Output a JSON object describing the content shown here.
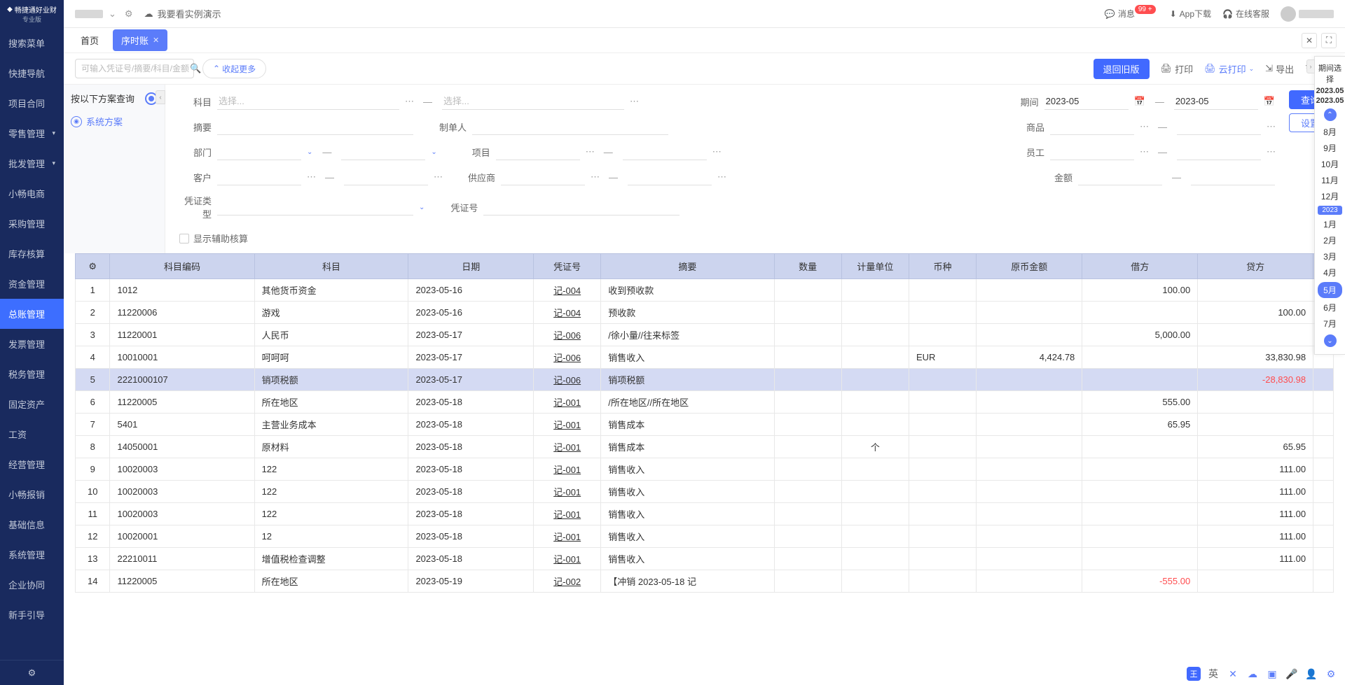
{
  "header": {
    "logo_main": "畅捷通好业财",
    "logo_sub": "专业版",
    "demo_link": "我要看实例演示",
    "msg_label": "消息",
    "msg_badge": "99 +",
    "app_download": "App下载",
    "online_service": "在线客服"
  },
  "sidebar": {
    "items": [
      {
        "label": "搜索菜单",
        "caret": false
      },
      {
        "label": "快捷导航",
        "caret": false
      },
      {
        "label": "项目合同",
        "caret": false
      },
      {
        "label": "零售管理",
        "caret": true
      },
      {
        "label": "批发管理",
        "caret": true
      },
      {
        "label": "小畅电商",
        "caret": false
      },
      {
        "label": "采购管理",
        "caret": false
      },
      {
        "label": "库存核算",
        "caret": false
      },
      {
        "label": "资金管理",
        "caret": false
      },
      {
        "label": "总账管理",
        "caret": false,
        "active": true
      },
      {
        "label": "发票管理",
        "caret": false
      },
      {
        "label": "税务管理",
        "caret": false
      },
      {
        "label": "固定资产",
        "caret": false
      },
      {
        "label": "工资",
        "caret": false
      },
      {
        "label": "经营管理",
        "caret": false
      },
      {
        "label": "小畅报销",
        "caret": false
      },
      {
        "label": "基础信息",
        "caret": false
      },
      {
        "label": "系统管理",
        "caret": false
      },
      {
        "label": "企业协同",
        "caret": false
      },
      {
        "label": "新手引导",
        "caret": false
      }
    ]
  },
  "tabs": {
    "home": "首页",
    "active": "序时账"
  },
  "toolbar": {
    "search_placeholder": "可输入凭证号/摘要/科目/金额",
    "collapse": "收起更多",
    "return_old": "退回旧版",
    "print": "打印",
    "cloud_print": "云打印",
    "export": "导出",
    "refresh": "刷新"
  },
  "filter": {
    "left_title": "按以下方案查询",
    "scheme": "系统方案",
    "labels": {
      "subject": "科目",
      "subject_ph": "选择...",
      "subject2_ph": "选择...",
      "period": "期间",
      "period_from": "2023-05",
      "period_to": "2023-05",
      "summary": "摘要",
      "maker": "制单人",
      "goods": "商品",
      "dept": "部门",
      "project": "项目",
      "employee": "员工",
      "customer": "客户",
      "supplier": "供应商",
      "amount": "金额",
      "voucher_type": "凭证类型",
      "voucher_no": "凭证号",
      "show_aux": "显示辅助核算"
    },
    "btn_query": "查询",
    "btn_setting": "设置"
  },
  "table": {
    "headers": {
      "code": "科目编码",
      "subject": "科目",
      "date": "日期",
      "voucher": "凭证号",
      "summary": "摘要",
      "qty": "数量",
      "unit": "计量单位",
      "currency": "币种",
      "orig": "原币金额",
      "debit": "借方",
      "credit": "贷方"
    },
    "rows": [
      {
        "idx": "1",
        "code": "1012",
        "subject": "其他货币资金",
        "date": "2023-05-16",
        "voucher": "记-004",
        "summary": "收到预收款",
        "qty": "",
        "unit": "",
        "currency": "",
        "orig": "",
        "debit": "100.00",
        "credit": ""
      },
      {
        "idx": "2",
        "code": "11220006",
        "subject": "游戏",
        "date": "2023-05-16",
        "voucher": "记-004",
        "summary": "预收款",
        "qty": "",
        "unit": "",
        "currency": "",
        "orig": "",
        "debit": "",
        "credit": "100.00"
      },
      {
        "idx": "3",
        "code": "11220001",
        "subject": "人民币",
        "date": "2023-05-17",
        "voucher": "记-006",
        "summary": "/徐小量//往来标签",
        "qty": "",
        "unit": "",
        "currency": "",
        "orig": "",
        "debit": "5,000.00",
        "credit": ""
      },
      {
        "idx": "4",
        "code": "10010001",
        "subject": "呵呵呵",
        "date": "2023-05-17",
        "voucher": "记-006",
        "summary": "销售收入",
        "qty": "",
        "unit": "",
        "currency": "EUR",
        "orig": "4,424.78",
        "debit": "",
        "credit": "33,830.98"
      },
      {
        "idx": "5",
        "code": "2221000107",
        "subject": "销项税额",
        "date": "2023-05-17",
        "voucher": "记-006",
        "summary": "销项税额",
        "qty": "",
        "unit": "",
        "currency": "",
        "orig": "",
        "debit": "",
        "credit": "-28,830.98",
        "hl": true,
        "neg": true
      },
      {
        "idx": "6",
        "code": "11220005",
        "subject": "所在地区",
        "date": "2023-05-18",
        "voucher": "记-001",
        "summary": "/所在地区//所在地区",
        "qty": "",
        "unit": "",
        "currency": "",
        "orig": "",
        "debit": "555.00",
        "credit": ""
      },
      {
        "idx": "7",
        "code": "5401",
        "subject": "主营业务成本",
        "date": "2023-05-18",
        "voucher": "记-001",
        "summary": "销售成本",
        "qty": "",
        "unit": "",
        "currency": "",
        "orig": "",
        "debit": "65.95",
        "credit": ""
      },
      {
        "idx": "8",
        "code": "14050001",
        "subject": "原材料",
        "date": "2023-05-18",
        "voucher": "记-001",
        "summary": "销售成本",
        "qty": "",
        "unit": "个",
        "currency": "",
        "orig": "",
        "debit": "",
        "credit": "65.95"
      },
      {
        "idx": "9",
        "code": "10020003",
        "subject": "122",
        "date": "2023-05-18",
        "voucher": "记-001",
        "summary": "销售收入",
        "qty": "",
        "unit": "",
        "currency": "",
        "orig": "",
        "debit": "",
        "credit": "111.00"
      },
      {
        "idx": "10",
        "code": "10020003",
        "subject": "122",
        "date": "2023-05-18",
        "voucher": "记-001",
        "summary": "销售收入",
        "qty": "",
        "unit": "",
        "currency": "",
        "orig": "",
        "debit": "",
        "credit": "111.00"
      },
      {
        "idx": "11",
        "code": "10020003",
        "subject": "122",
        "date": "2023-05-18",
        "voucher": "记-001",
        "summary": "销售收入",
        "qty": "",
        "unit": "",
        "currency": "",
        "orig": "",
        "debit": "",
        "credit": "111.00"
      },
      {
        "idx": "12",
        "code": "10020001",
        "subject": "12",
        "date": "2023-05-18",
        "voucher": "记-001",
        "summary": "销售收入",
        "qty": "",
        "unit": "",
        "currency": "",
        "orig": "",
        "debit": "",
        "credit": "111.00"
      },
      {
        "idx": "13",
        "code": "22210011",
        "subject": "增值税检查调整",
        "date": "2023-05-18",
        "voucher": "记-001",
        "summary": "销售收入",
        "qty": "",
        "unit": "",
        "currency": "",
        "orig": "",
        "debit": "",
        "credit": "111.00"
      },
      {
        "idx": "14",
        "code": "11220005",
        "subject": "所在地区",
        "date": "2023-05-19",
        "voucher": "记-002",
        "summary": "【冲销 2023-05-18 记",
        "qty": "",
        "unit": "",
        "currency": "",
        "orig": "",
        "debit": "-555.00",
        "credit": "",
        "negd": true
      }
    ]
  },
  "period_panel": {
    "title": "期间选择",
    "year1": "2023.05",
    "year2": "2023.05",
    "months_top": [
      "8月",
      "9月",
      "10月",
      "11月",
      "12月"
    ],
    "year_tag": "2023",
    "months_bottom": [
      "1月",
      "2月",
      "3月",
      "4月",
      "5月",
      "6月",
      "7月"
    ],
    "active_month": "5月"
  },
  "ime": "英"
}
